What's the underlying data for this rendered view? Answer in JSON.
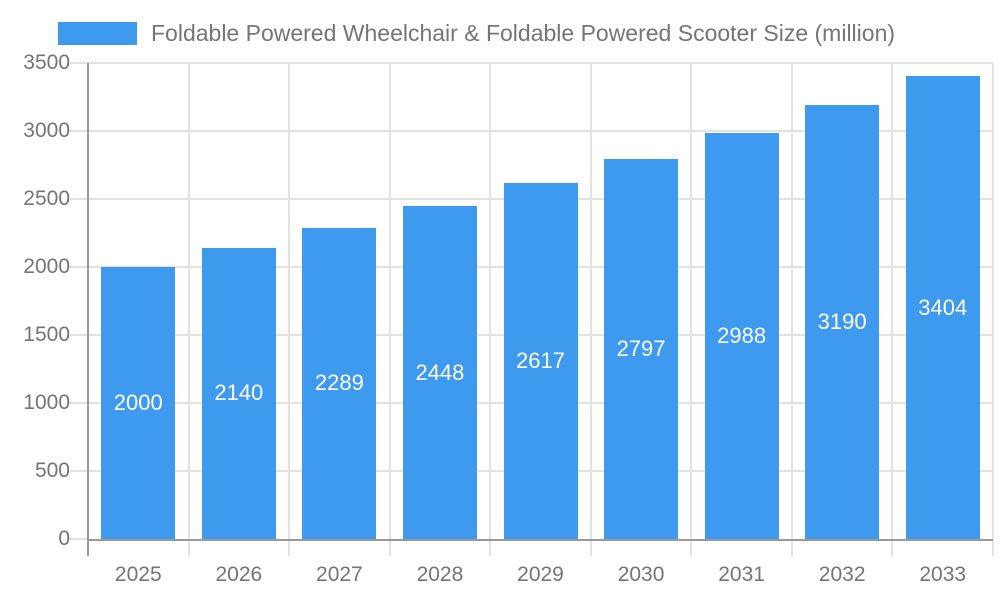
{
  "colors": {
    "bar": "#3E9AEF",
    "grid": "#E2E2E2",
    "axis": "#999999",
    "text": "#757575",
    "bar_label": "#FFFFFF",
    "background": "#FFFFFF"
  },
  "legend": {
    "label": "Foldable Powered Wheelchair & Foldable Powered Scooter Size (million)"
  },
  "chart_data": {
    "type": "bar",
    "title": "Foldable Powered Wheelchair & Foldable Powered Scooter Size (million)",
    "series_name": "Foldable Powered Wheelchair & Foldable Powered Scooter Size (million)",
    "categories": [
      "2025",
      "2026",
      "2027",
      "2028",
      "2029",
      "2030",
      "2031",
      "2032",
      "2033"
    ],
    "values": [
      2000,
      2140,
      2289,
      2448,
      2617,
      2797,
      2988,
      3190,
      3404
    ],
    "yticks": [
      0,
      500,
      1000,
      1500,
      2000,
      2500,
      3000,
      3500
    ],
    "ylim": [
      0,
      3500
    ],
    "xlabel": "",
    "ylabel": "",
    "grid": true,
    "legend_position": "top-left",
    "value_labels": "inside-center"
  }
}
